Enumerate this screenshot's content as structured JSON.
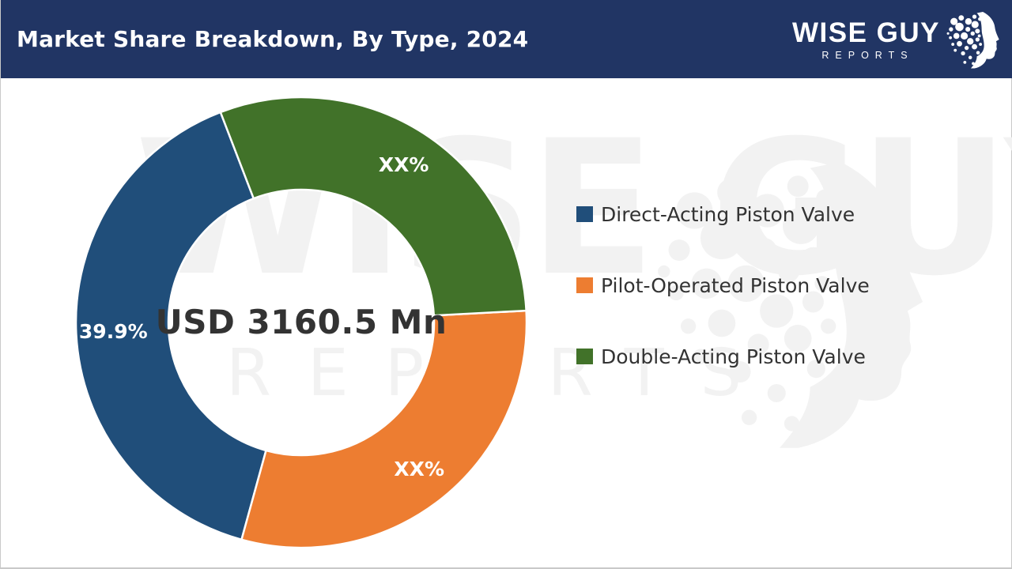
{
  "header": {
    "title": "Market Share Breakdown, By Type, 2024",
    "logo_line1": "WISE GUY",
    "logo_line2": "REPORTS"
  },
  "watermark": {
    "line1": "WISE GUY",
    "line2": "REPORTS"
  },
  "chart_data": {
    "type": "pie",
    "subtype": "donut",
    "title": "Market Share Breakdown, By Type, 2024",
    "center_label": "USD 3160.5 Mn",
    "legend_position": "right",
    "start_angle_deg": 111,
    "direction": "counterclockwise",
    "outer_radius_px": 285,
    "inner_radius_px": 168,
    "series": [
      {
        "name": "Direct-Acting Piston Valve",
        "color": "#204E7A",
        "display_label": "39.9%",
        "angle_share_pct": 39.9
      },
      {
        "name": "Pilot-Operated Piston Valve",
        "color": "#ED7D31",
        "display_label": "XX%",
        "angle_share_pct": 30.1
      },
      {
        "name": "Double-Acting Piston Valve",
        "color": "#417229",
        "display_label": "XX%",
        "angle_share_pct": 30.0
      }
    ]
  },
  "colors": {
    "header_bg": "#213564",
    "watermark": "#f2f2f2",
    "text_dark": "#333333",
    "slice_gap_stroke": "#ffffff",
    "page_border": "#c9c9c9"
  }
}
